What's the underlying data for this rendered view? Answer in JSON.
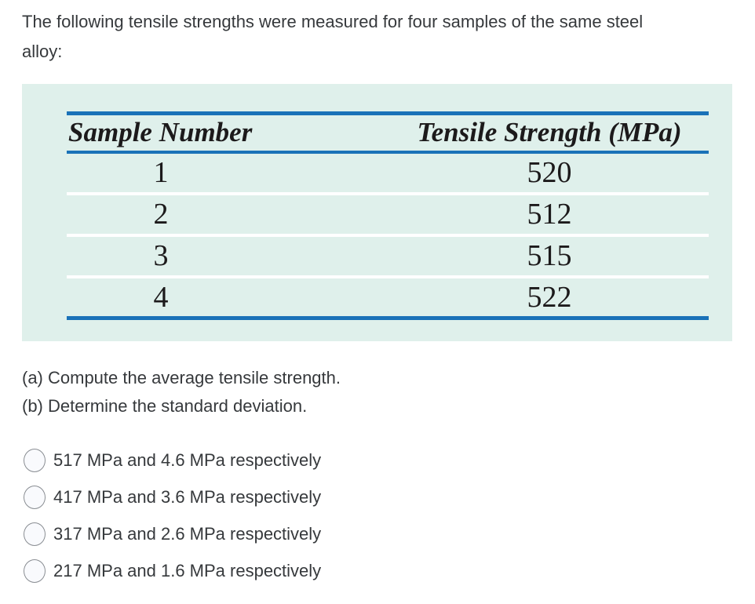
{
  "question": {
    "intro_lines": [
      "The following tensile strengths were measured for four samples of the same steel",
      "alloy:"
    ],
    "parts": [
      "(a) Compute the average tensile strength.",
      "(b) Determine the standard deviation."
    ]
  },
  "table": {
    "headers": [
      "Sample Number",
      "Tensile Strength (MPa)"
    ],
    "rows": [
      {
        "sample": "1",
        "strength": "520"
      },
      {
        "sample": "2",
        "strength": "512"
      },
      {
        "sample": "3",
        "strength": "515"
      },
      {
        "sample": "4",
        "strength": "522"
      }
    ]
  },
  "options": [
    {
      "label": "517 MPa and 4.6 MPa respectively",
      "selected": false
    },
    {
      "label": "417 MPa and 3.6 MPa respectively",
      "selected": false
    },
    {
      "label": "317 MPa and 2.6 MPa respectively",
      "selected": false
    },
    {
      "label": "217 MPa and 1.6 MPa respectively",
      "selected": false
    }
  ],
  "colors": {
    "panel_background": "#dff0eb",
    "table_rule_blue": "#1a72b8",
    "row_separator_white": "#ffffff",
    "body_text": "#36393c",
    "table_text": "#1c1a1b"
  }
}
